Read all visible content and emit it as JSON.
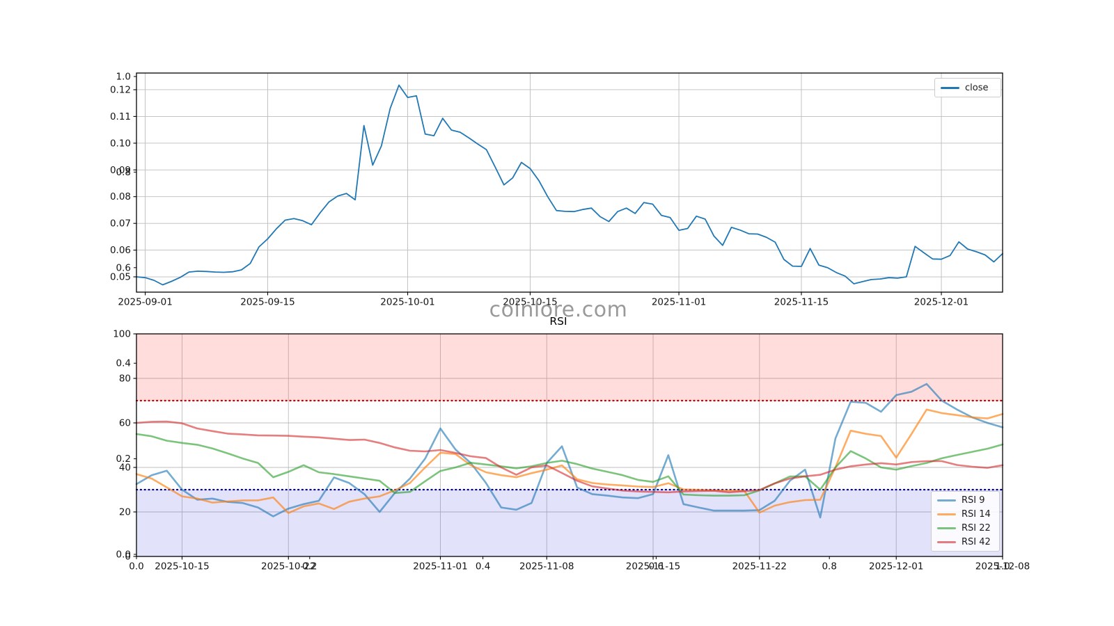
{
  "watermark": "coinlore.com",
  "colors": {
    "close": "#1f77b4",
    "rsi9": "rgba(31,119,180,0.62)",
    "rsi14": "rgba(255,127,14,0.65)",
    "rsi22": "rgba(44,160,44,0.62)",
    "rsi42": "rgba(214,39,40,0.60)",
    "overbought_line": "#cc0000",
    "oversold_line": "#000099",
    "overbought_fill": "rgba(255,55,55,0.17)",
    "oversold_fill": "rgba(75,75,225,0.16)",
    "grid": "#bdbdbd",
    "axis": "#000000",
    "watermark": "#999999"
  },
  "overlay_axis": {
    "y_labels": [
      "1.0",
      "0.8",
      "0.6",
      "0.4",
      "0.2",
      "0.0"
    ],
    "x_labels": [
      "0.0",
      "0.2",
      "0.4",
      "0.6",
      "0.8",
      "1.0"
    ]
  },
  "chart_data": [
    {
      "type": "line",
      "title": "",
      "legend_position": "upper right",
      "grid": true,
      "x_start": "2025-08-31",
      "x_end": "2025-12-08",
      "x_ticks": [
        {
          "label": "2025-09-01",
          "day": 1
        },
        {
          "label": "2025-09-15",
          "day": 15
        },
        {
          "label": "2025-10-01",
          "day": 31
        },
        {
          "label": "2025-10-15",
          "day": 45
        },
        {
          "label": "2025-11-01",
          "day": 62
        },
        {
          "label": "2025-11-15",
          "day": 76
        },
        {
          "label": "2025-12-01",
          "day": 92
        }
      ],
      "y_ticks": [
        "0.05",
        "0.06",
        "0.07",
        "0.08",
        "0.09",
        "0.10",
        "0.11",
        "0.12"
      ],
      "ylim": [
        0.04428,
        0.12624
      ],
      "series": [
        {
          "name": "close",
          "color_key": "close",
          "values": [
            0.05,
            0.0497,
            0.0487,
            0.047,
            0.0483,
            0.0498,
            0.0518,
            0.0521,
            0.052,
            0.0518,
            0.0517,
            0.0519,
            0.0526,
            0.055,
            0.0612,
            0.0642,
            0.068,
            0.0712,
            0.0718,
            0.071,
            0.0695,
            0.074,
            0.078,
            0.0802,
            0.0812,
            0.0788,
            0.1066,
            0.0918,
            0.099,
            0.113,
            0.1217,
            0.1171,
            0.1177,
            0.1034,
            0.1028,
            0.1093,
            0.1049,
            0.1041,
            0.102,
            0.0997,
            0.0976,
            0.0911,
            0.0844,
            0.087,
            0.0928,
            0.0905,
            0.086,
            0.08,
            0.0748,
            0.0745,
            0.0744,
            0.0752,
            0.0757,
            0.0725,
            0.0707,
            0.0744,
            0.0757,
            0.0737,
            0.0778,
            0.0772,
            0.073,
            0.0722,
            0.0674,
            0.0681,
            0.0727,
            0.0716,
            0.0653,
            0.0618,
            0.0685,
            0.0675,
            0.0661,
            0.066,
            0.0648,
            0.063,
            0.0565,
            0.054,
            0.0539,
            0.0606,
            0.0544,
            0.0534,
            0.0516,
            0.0503,
            0.0474,
            0.0482,
            0.049,
            0.0492,
            0.0497,
            0.0495,
            0.05,
            0.0614,
            0.059,
            0.0567,
            0.0566,
            0.058,
            0.0631,
            0.0604,
            0.0594,
            0.0582,
            0.0556,
            0.0587
          ]
        }
      ]
    },
    {
      "type": "line",
      "title": "RSI",
      "legend_position": "lower right",
      "grid": true,
      "x_start": "2025-10-12",
      "x_end": "2025-12-08",
      "x_ticks": [
        {
          "label": "2025-10-15",
          "day": 3
        },
        {
          "label": "2025-10-22",
          "day": 10
        },
        {
          "label": "2025-11-01",
          "day": 20
        },
        {
          "label": "2025-11-08",
          "day": 27
        },
        {
          "label": "2025-11-15",
          "day": 34
        },
        {
          "label": "2025-11-22",
          "day": 41
        },
        {
          "label": "2025-12-01",
          "day": 50
        },
        {
          "label": "2025-12-08",
          "day": 57
        }
      ],
      "y_ticks": [
        "0",
        "20",
        "40",
        "60",
        "80",
        "100"
      ],
      "ylim": [
        0,
        100
      ],
      "bands": [
        {
          "name": "overbought-band",
          "from": 70,
          "to": 100,
          "color_key": "overbought_fill"
        },
        {
          "name": "oversold-band",
          "from": 0,
          "to": 30,
          "color_key": "oversold_fill"
        }
      ],
      "threshold_lines": [
        {
          "name": "overbought-threshold",
          "y": 70,
          "color_key": "overbought_line"
        },
        {
          "name": "oversold-threshold",
          "y": 30,
          "color_key": "oversold_line"
        }
      ],
      "series": [
        {
          "name": "RSI 9",
          "color_key": "rsi9",
          "values": [
            32.5,
            36.5,
            38.5,
            30,
            25.5,
            26,
            24.5,
            24,
            22,
            18,
            21.5,
            23.5,
            25,
            35.5,
            33,
            28,
            20,
            28.5,
            35,
            44,
            57.5,
            48,
            42,
            33,
            22,
            21,
            24,
            42,
            49.5,
            31,
            28,
            27.3,
            26.5,
            26.2,
            28,
            45.5,
            23.5,
            22,
            20.6,
            20.6,
            20.6,
            20.8,
            25,
            34,
            39,
            17.5,
            53,
            69.5,
            69,
            65,
            72.5,
            74,
            77.5,
            70,
            66,
            62.5,
            60,
            58
          ]
        },
        {
          "name": "RSI 14",
          "color_key": "rsi14",
          "values": [
            37,
            35,
            31,
            27,
            26,
            24.2,
            24.7,
            25.2,
            25.2,
            26.5,
            19.5,
            22.5,
            23.8,
            21.3,
            24.6,
            26,
            27,
            29.7,
            33,
            40,
            46.6,
            46,
            41,
            37.8,
            36.5,
            35.6,
            37.4,
            39,
            40.9,
            34.7,
            33,
            32.3,
            31.9,
            31.4,
            31.2,
            32.9,
            30.1,
            29.9,
            29.7,
            29.6,
            29.5,
            19.7,
            22.8,
            24.4,
            25.3,
            25.5,
            40,
            56.5,
            55.1,
            54.1,
            44.4,
            55,
            66,
            64.4,
            63.5,
            62.5,
            62,
            64
          ]
        },
        {
          "name": "RSI 22",
          "color_key": "rsi22",
          "values": [
            55,
            54,
            52,
            51,
            50.2,
            48.5,
            46.3,
            44,
            42,
            35.6,
            38,
            41,
            37.8,
            37,
            36,
            35,
            34,
            28.5,
            29,
            33.8,
            38.4,
            40,
            42.1,
            41.3,
            40.5,
            39.6,
            40.5,
            42,
            43,
            41.5,
            39.5,
            38,
            36.5,
            34.4,
            33.5,
            36,
            27.8,
            27.5,
            27.3,
            27.3,
            27.5,
            29.7,
            32.8,
            35.9,
            36,
            30,
            40,
            47.3,
            44,
            40,
            39,
            40.6,
            42,
            44.1,
            45.6,
            47,
            48.4,
            50.3
          ]
        },
        {
          "name": "RSI 42",
          "color_key": "rsi42",
          "values": [
            60,
            60.5,
            60.6,
            59.8,
            57.5,
            56.3,
            55.2,
            54.8,
            54.4,
            54.3,
            54.2,
            53.8,
            53.5,
            52.9,
            52.3,
            52.5,
            51,
            49,
            47.5,
            47.2,
            47.8,
            46.5,
            45,
            44.2,
            40,
            36.7,
            40,
            40.9,
            37.5,
            34,
            31.5,
            30.5,
            29.6,
            29.2,
            29,
            28.8,
            29.2,
            29.4,
            29.5,
            28.8,
            29.3,
            29.8,
            32.8,
            35,
            36,
            36.7,
            39,
            40.5,
            41.3,
            41.9,
            41.3,
            42.4,
            42.8,
            42.8,
            41.1,
            40.3,
            39.8,
            41
          ]
        }
      ]
    }
  ]
}
